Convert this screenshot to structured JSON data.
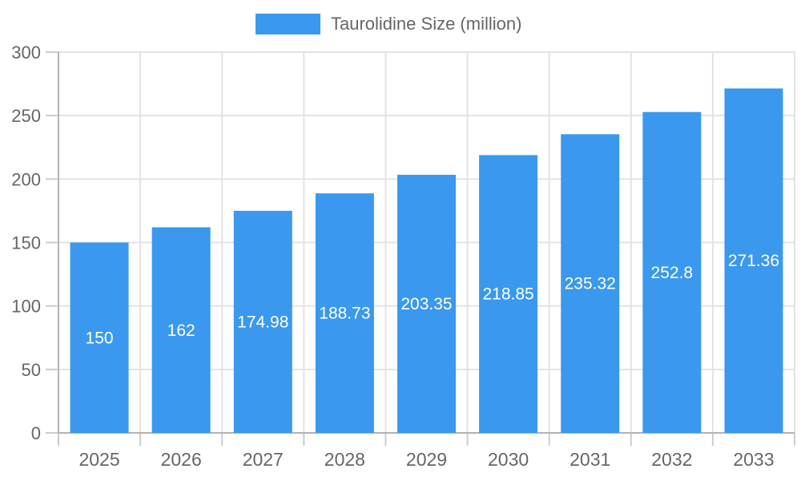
{
  "legend": {
    "label": "Taurolidine Size (million)",
    "swatch_color": "#3A99EE"
  },
  "chart_data": {
    "type": "bar",
    "title": "",
    "xlabel": "",
    "ylabel": "",
    "categories": [
      "2025",
      "2026",
      "2027",
      "2028",
      "2029",
      "2030",
      "2031",
      "2032",
      "2033"
    ],
    "series": [
      {
        "name": "Taurolidine Size (million)",
        "values": [
          150,
          162,
          174.98,
          188.73,
          203.35,
          218.85,
          235.32,
          252.8,
          271.36
        ],
        "labels": [
          "150",
          "162",
          "174.98",
          "188.73",
          "203.35",
          "218.85",
          "235.32",
          "252.8",
          "271.36"
        ],
        "color": "#3A99EE"
      }
    ],
    "ylim": [
      0,
      300
    ],
    "yticks": [
      0,
      50,
      100,
      150,
      200,
      250,
      300
    ],
    "grid": true,
    "legend_position": "top-center",
    "colors": {
      "bar": "#3A99EE",
      "bar_label": "#ffffff",
      "axis_text": "#666666",
      "legend_text": "#666666",
      "grid_line": "#e3e3e3",
      "axis_line": "#b3b3b3",
      "tick_line": "#cccccc"
    }
  }
}
